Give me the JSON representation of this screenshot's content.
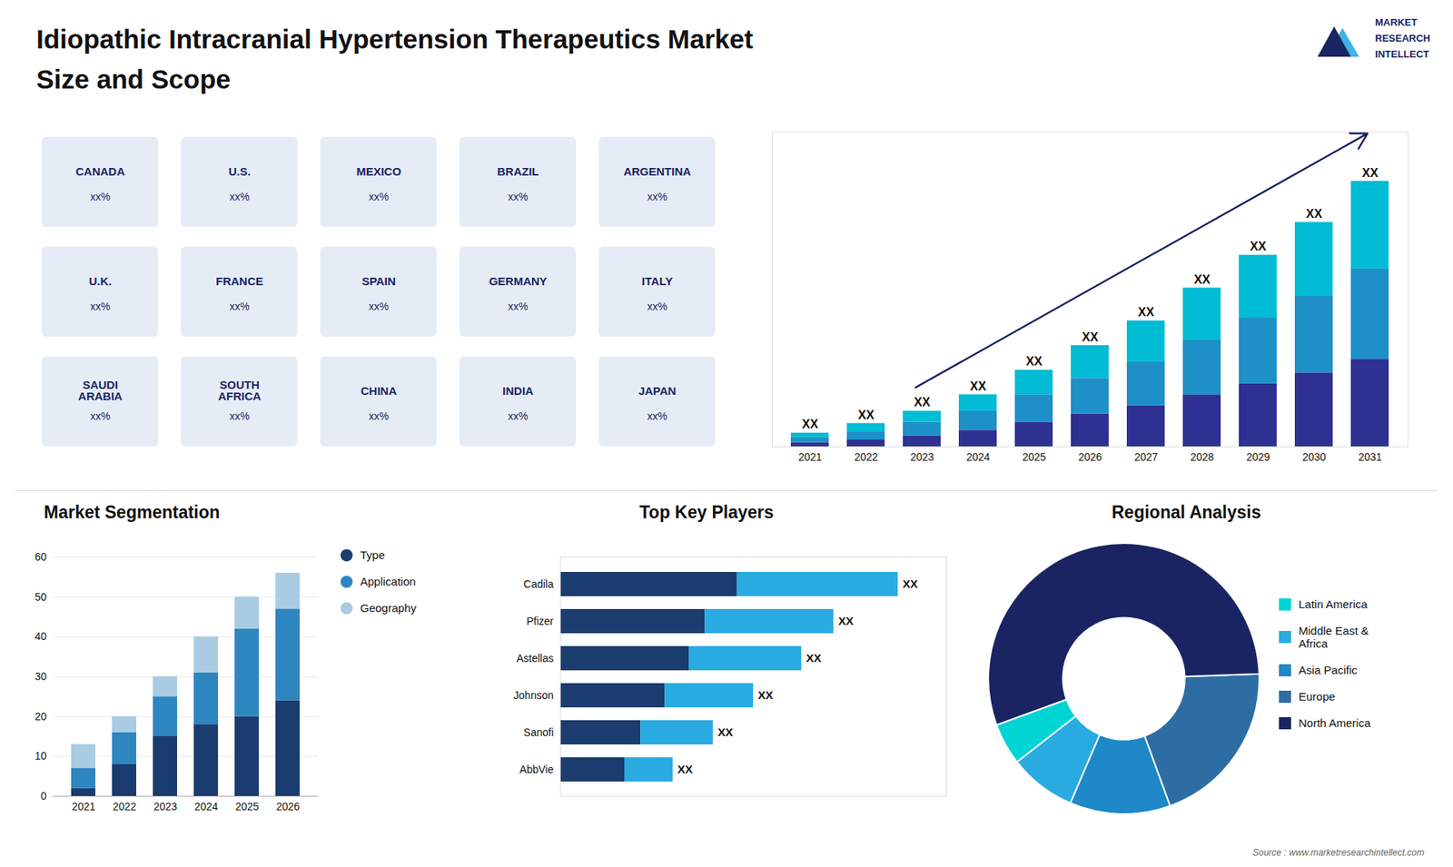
{
  "chart_data": [
    {
      "type": "map",
      "categories": [
        "CANADA",
        "U.S.",
        "MEXICO",
        "BRAZIL",
        "ARGENTINA",
        "U.K.",
        "FRANCE",
        "SPAIN",
        "GERMANY",
        "ITALY",
        "SAUDI\nARABIA",
        "SOUTH\nAFRICA",
        "CHINA",
        "INDIA",
        "JAPAN"
      ],
      "value_labels": [
        "xx%",
        "xx%",
        "xx%",
        "xx%",
        "xx%",
        "xx%",
        "xx%",
        "xx%",
        "xx%",
        "xx%",
        "xx%",
        "xx%",
        "xx%",
        "xx%",
        "xx%"
      ]
    },
    {
      "type": "bar",
      "title": "Idiopathic Intracranial Hypertension Therapeutics Market",
      "subtitle": "Size and Scope",
      "categories": [
        2021,
        2022,
        2023,
        2024,
        2025,
        2026,
        2027,
        2028,
        2029,
        2030,
        2031
      ],
      "series": [
        {
          "color": "#2e3192",
          "values": [
            1.5,
            2.5,
            4,
            6,
            9,
            12,
            15,
            19,
            23,
            27,
            32
          ]
        },
        {
          "color": "#1e90c8",
          "values": [
            2,
            3,
            5,
            7,
            10,
            13,
            16,
            20,
            24,
            28,
            33
          ]
        },
        {
          "color": "#00bcd4",
          "values": [
            1.5,
            3,
            4,
            6,
            9,
            12,
            15,
            19,
            23,
            27,
            32
          ]
        }
      ],
      "stacked": true,
      "data_labels": true,
      "value_labels": [
        "XX",
        "XX",
        "XX",
        "XX",
        "XX",
        "XX",
        "XX",
        "XX",
        "XX",
        "XX",
        "XX"
      ],
      "ylim": [
        0,
        115
      ],
      "tick_labels": "x",
      "annotations": [
        "MARKET",
        "RESEARCH",
        "INTELLECT"
      ]
    },
    {
      "type": "bar",
      "title": "Market Segmentation",
      "categories": [
        2021,
        2022,
        2023,
        2024,
        2025,
        2026
      ],
      "series": [
        {
          "name": "Type",
          "color": "#1a3c6e",
          "values": [
            2,
            8,
            15,
            18,
            20,
            24
          ]
        },
        {
          "name": "Application",
          "color": "#2e86c1",
          "values": [
            5,
            8,
            10,
            13,
            22,
            23
          ]
        },
        {
          "name": "Geography",
          "color": "#a9cce3",
          "values": [
            6,
            4,
            5,
            9,
            8,
            9
          ]
        }
      ],
      "stacked": true,
      "ylim": [
        0,
        60
      ],
      "yticks": [
        0,
        10,
        20,
        30,
        40,
        50,
        60
      ],
      "grid": true,
      "legend": "right"
    },
    {
      "type": "bar",
      "title": "Top Key Players",
      "orientation": "horizontal",
      "categories": [
        "Cadila",
        "Pfizer",
        "Astellas",
        "Johnson",
        "Sanofi",
        "AbbVie"
      ],
      "series": [
        {
          "color": "#1a3c6e",
          "values": [
            22,
            18,
            16,
            13,
            10,
            8
          ]
        },
        {
          "color": "#29abe2",
          "values": [
            20,
            16,
            14,
            11,
            9,
            6
          ]
        }
      ],
      "stacked": true,
      "data_labels": true,
      "value_labels": [
        "XX",
        "XX",
        "XX",
        "XX",
        "XX",
        "XX"
      ],
      "xlim": [
        0,
        48
      ],
      "tick_labels": "y"
    },
    {
      "type": "donut",
      "title": "Regional Analysis",
      "categories": [
        "Latin America",
        "Middle East &\nAfrica",
        "Asia Pacific",
        "Europe",
        "North America"
      ],
      "values": [
        5,
        8,
        12,
        20,
        55
      ],
      "colors": [
        "#00d4d4",
        "#29abe2",
        "#1e88c8",
        "#2e6da4",
        "#1a2462"
      ],
      "legend": "right",
      "annotations": [
        "Source : www.marketresearchintellect.com"
      ]
    }
  ]
}
